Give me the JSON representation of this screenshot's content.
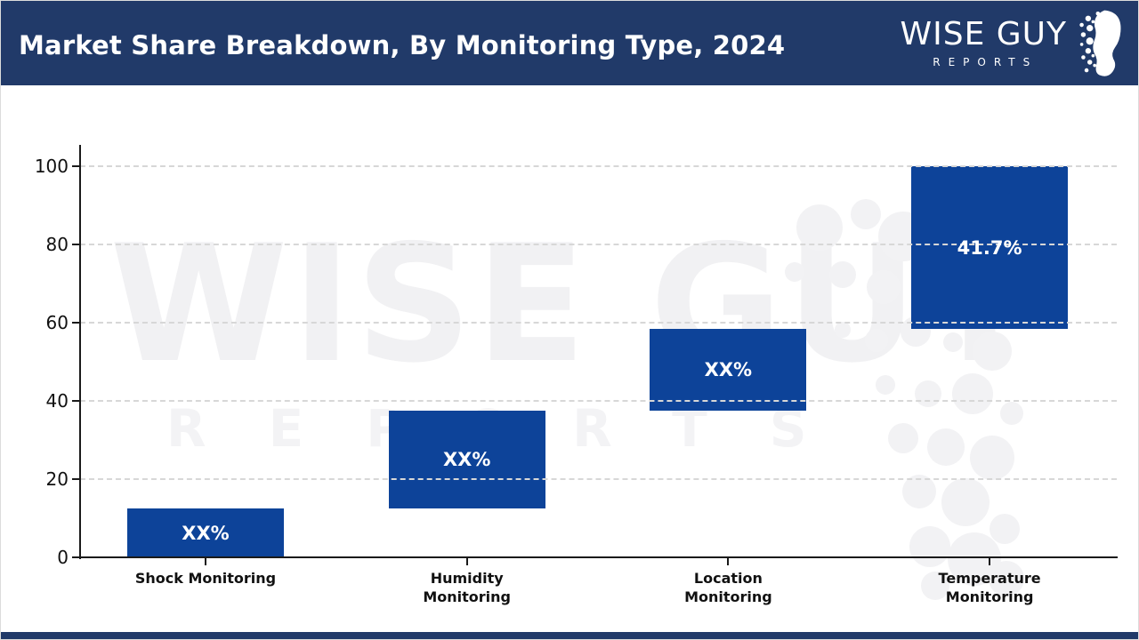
{
  "header": {
    "title": "Market Share Breakdown, By Monitoring Type, 2024",
    "brand": {
      "name": "WISE GUY",
      "sub": "REPORTS"
    },
    "bg_color": "#213a69",
    "text_color": "#ffffff"
  },
  "watermark": {
    "line1": "WISE GUY",
    "line2": "REPORTS"
  },
  "chart_data": {
    "type": "bar",
    "subtype": "waterfall",
    "title": "Market Share Breakdown, By Monitoring Type, 2024",
    "categories": [
      [
        "Shock Monitoring"
      ],
      [
        "Humidity",
        "Monitoring"
      ],
      [
        "Location",
        "Monitoring"
      ],
      [
        "Temperature",
        "Monitoring"
      ]
    ],
    "segments": [
      {
        "label": "Shock Monitoring",
        "start": 0,
        "end": 12.5,
        "value_label": "XX%"
      },
      {
        "label": "Humidity Monitoring",
        "start": 12.5,
        "end": 37.5,
        "value_label": "XX%"
      },
      {
        "label": "Location Monitoring",
        "start": 37.5,
        "end": 58.3,
        "value_label": "XX%"
      },
      {
        "label": "Temperature Monitoring",
        "start": 58.3,
        "end": 100,
        "value_label": "41.7%"
      }
    ],
    "yticks": [
      0,
      20,
      40,
      60,
      80,
      100
    ],
    "ylim": [
      0,
      106
    ],
    "grid": true,
    "legend": false,
    "bar_color": "#0d4399",
    "bar_label_color": "#ffffff",
    "gridline_color": "#d7d7d7",
    "axis_color": "#1a1a1a",
    "xlabel": "",
    "ylabel": ""
  }
}
